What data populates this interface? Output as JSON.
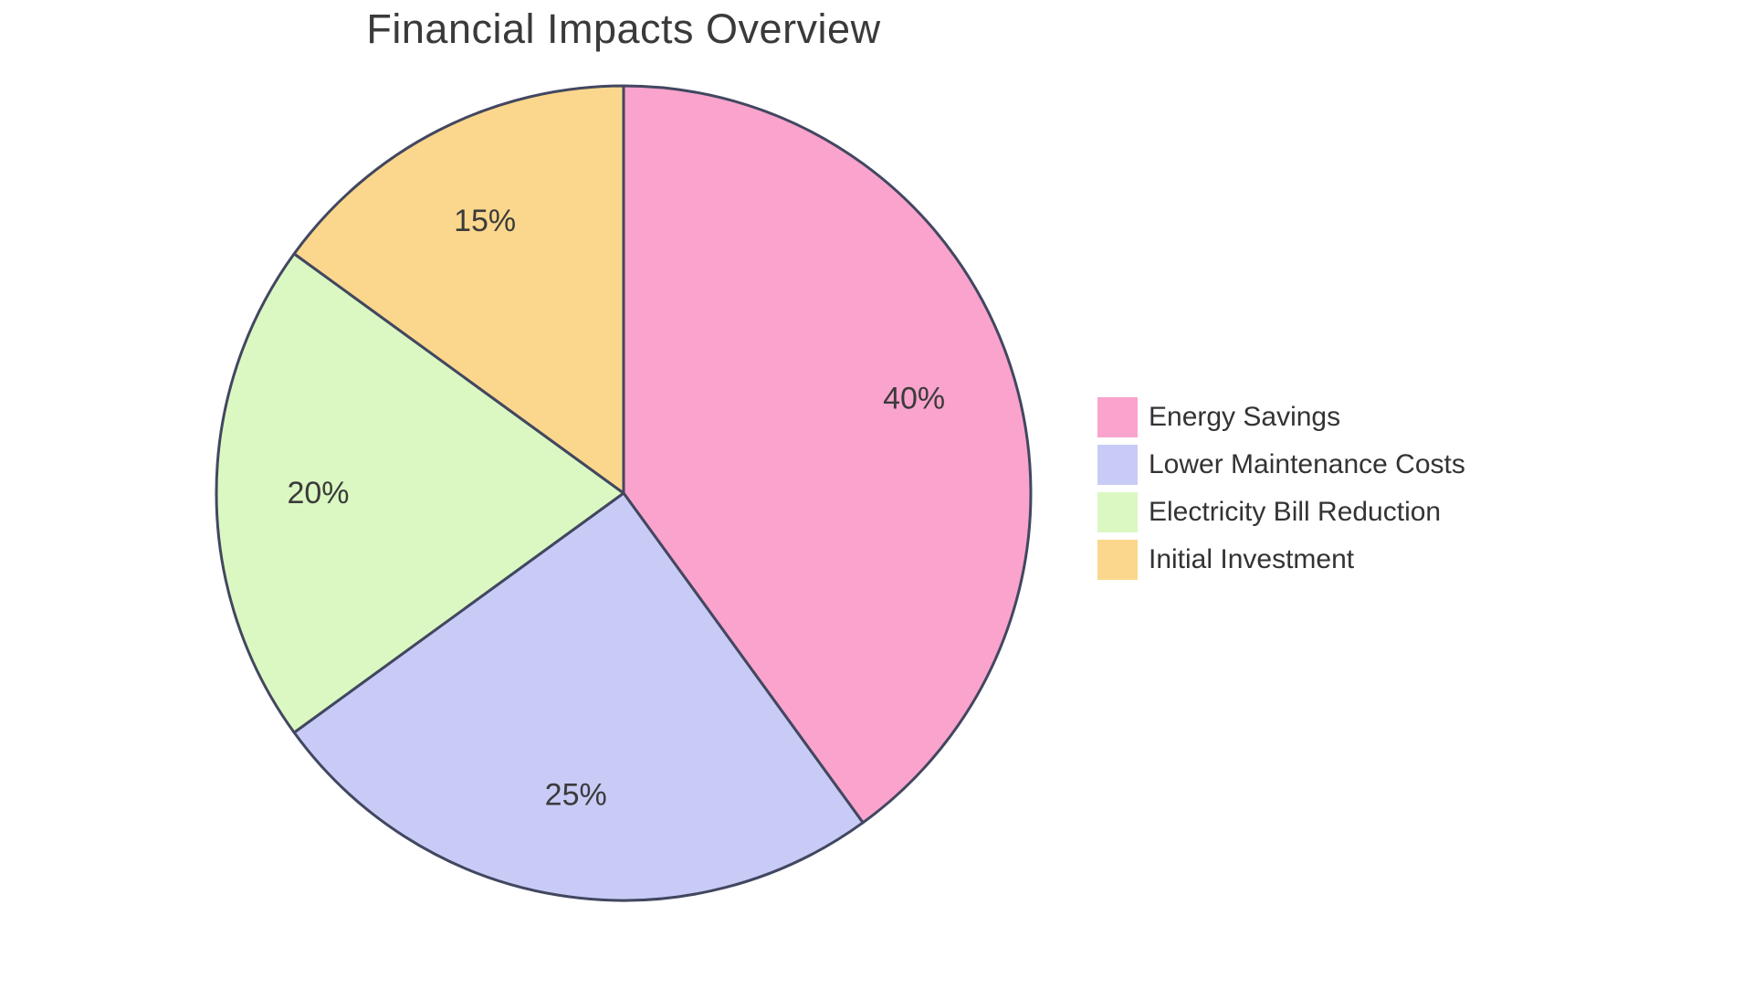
{
  "chart_data": {
    "type": "pie",
    "title": "Financial Impacts Overview",
    "categories": [
      "Energy Savings",
      "Lower Maintenance Costs",
      "Electricity Bill Reduction",
      "Initial Investment"
    ],
    "values": [
      40,
      25,
      20,
      15
    ],
    "slice_labels": [
      "40%",
      "25%",
      "20%",
      "15%"
    ],
    "colors": [
      "#FAA3CC",
      "#C9CBF7",
      "#DBF8C2",
      "#FBD78D"
    ],
    "start_at": "top",
    "direction": "clockwise",
    "legend_position": "right",
    "background": "#FFFFFF",
    "stroke_color": "#424760",
    "title_color": "#3A3A3A",
    "slice_label_color": "#3B3B3B",
    "legend_text_color": "#333333"
  }
}
